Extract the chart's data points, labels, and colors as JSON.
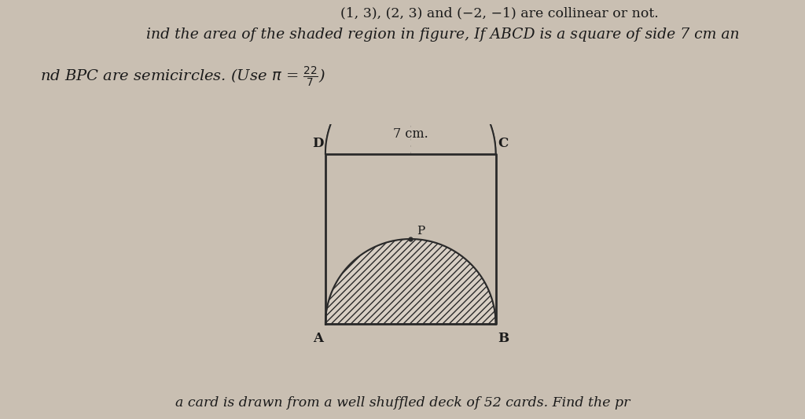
{
  "bg_color": "#c9bfb2",
  "top_partial": "(1, 3), (2, 3) and (−2, −1) are collinear or not.",
  "line1": "ind the area of the shaded region in figure, If ABCD is a square of side 7 cm an",
  "line2": "nd BPC are semicircles. (Use π = ",
  "bottom_text": "a card is drawn from a well shuffled deck of 52 cards. Find the pr",
  "square_side": 7,
  "label_A": "A",
  "label_B": "B",
  "label_C": "C",
  "label_D": "D",
  "label_P": "P",
  "dim_label": "7 cm.",
  "line_color": "#2a2a2a",
  "text_color": "#1a1a1a",
  "hatch_color": "#3a3a3a",
  "shaded_face": "#d8cfc4",
  "unshaded_face": "#c9bfb2"
}
